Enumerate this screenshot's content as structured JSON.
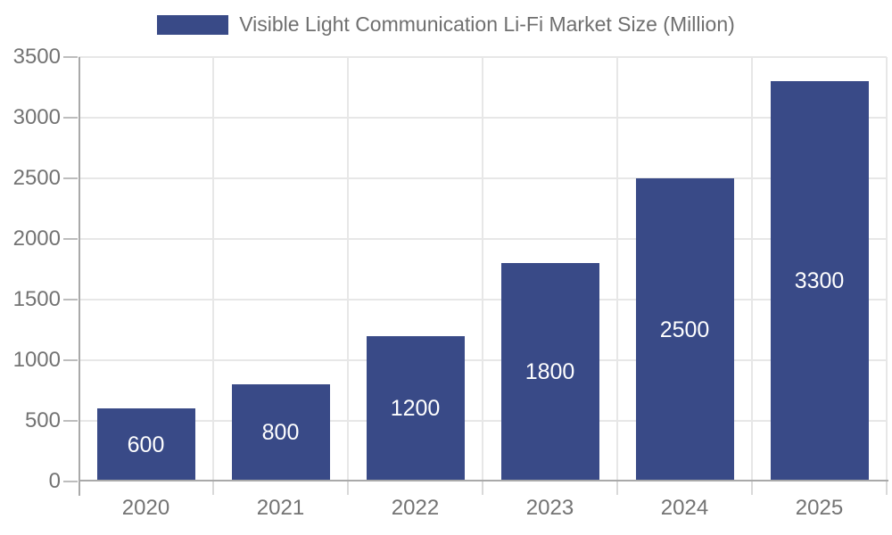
{
  "legend": {
    "label": "Visible Light Communication Li-Fi Market Size (Million)",
    "swatch_color": "#394A87"
  },
  "chart_data": {
    "type": "bar",
    "title": "Visible Light Communication Li-Fi Market Size (Million)",
    "categories": [
      "2020",
      "2021",
      "2022",
      "2023",
      "2024",
      "2025"
    ],
    "series": [
      {
        "name": "Visible Light Communication Li-Fi Market Size (Million)",
        "values": [
          600,
          800,
          1200,
          1800,
          2500,
          3300
        ]
      }
    ],
    "value_labels": [
      "600",
      "800",
      "1200",
      "1800",
      "2500",
      "3300"
    ],
    "xlabel": "",
    "ylabel": "",
    "ylim": [
      0,
      3500
    ],
    "yticks": [
      0,
      500,
      1000,
      1500,
      2000,
      2500,
      3000,
      3500
    ],
    "grid": true,
    "legend_position": "top",
    "colors": {
      "bar": "#394A87",
      "value_label": "#FFFFFF",
      "axis_line": "#A9A9A9",
      "gridline": "#E7E7E7",
      "tick_label": "#737373",
      "legend_text": "#6F6F6F"
    }
  }
}
